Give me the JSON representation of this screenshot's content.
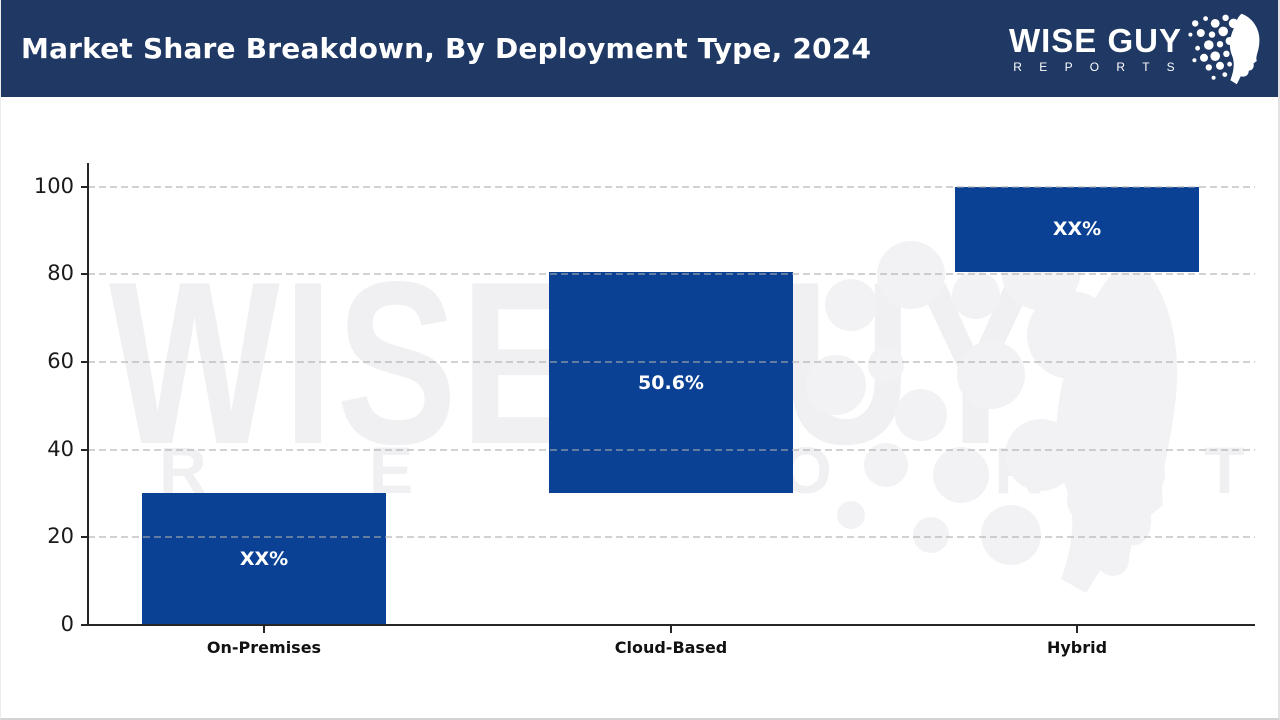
{
  "header": {
    "title": "Market Share Breakdown, By Deployment Type, 2024",
    "bg_color": "#1f3864",
    "logo": {
      "line1": "WISE GUY",
      "line2": "R E P O R T S"
    }
  },
  "watermark": {
    "line1": "WISE GUY",
    "line2": "R E P O R T S"
  },
  "chart_data": {
    "type": "bar",
    "subtype": "waterfall",
    "title": "Market Share Breakdown, By Deployment Type, 2024",
    "categories": [
      "On-Premises",
      "Cloud-Based",
      "Hybrid"
    ],
    "segments": [
      {
        "category": "On-Premises",
        "start": 0,
        "end": 30,
        "label": "XX%"
      },
      {
        "category": "Cloud-Based",
        "start": 30,
        "end": 80.6,
        "label": "50.6%"
      },
      {
        "category": "Hybrid",
        "start": 80.6,
        "end": 100,
        "label": "XX%"
      }
    ],
    "xlabel": "",
    "ylabel": "",
    "ylim": [
      0,
      105
    ],
    "yticks": [
      0,
      20,
      40,
      60,
      80,
      100
    ],
    "grid": "dashed-horizontal-above-bars",
    "bar_color": "#0a4195",
    "value_label_color": "#ffffff",
    "legend": "none"
  }
}
